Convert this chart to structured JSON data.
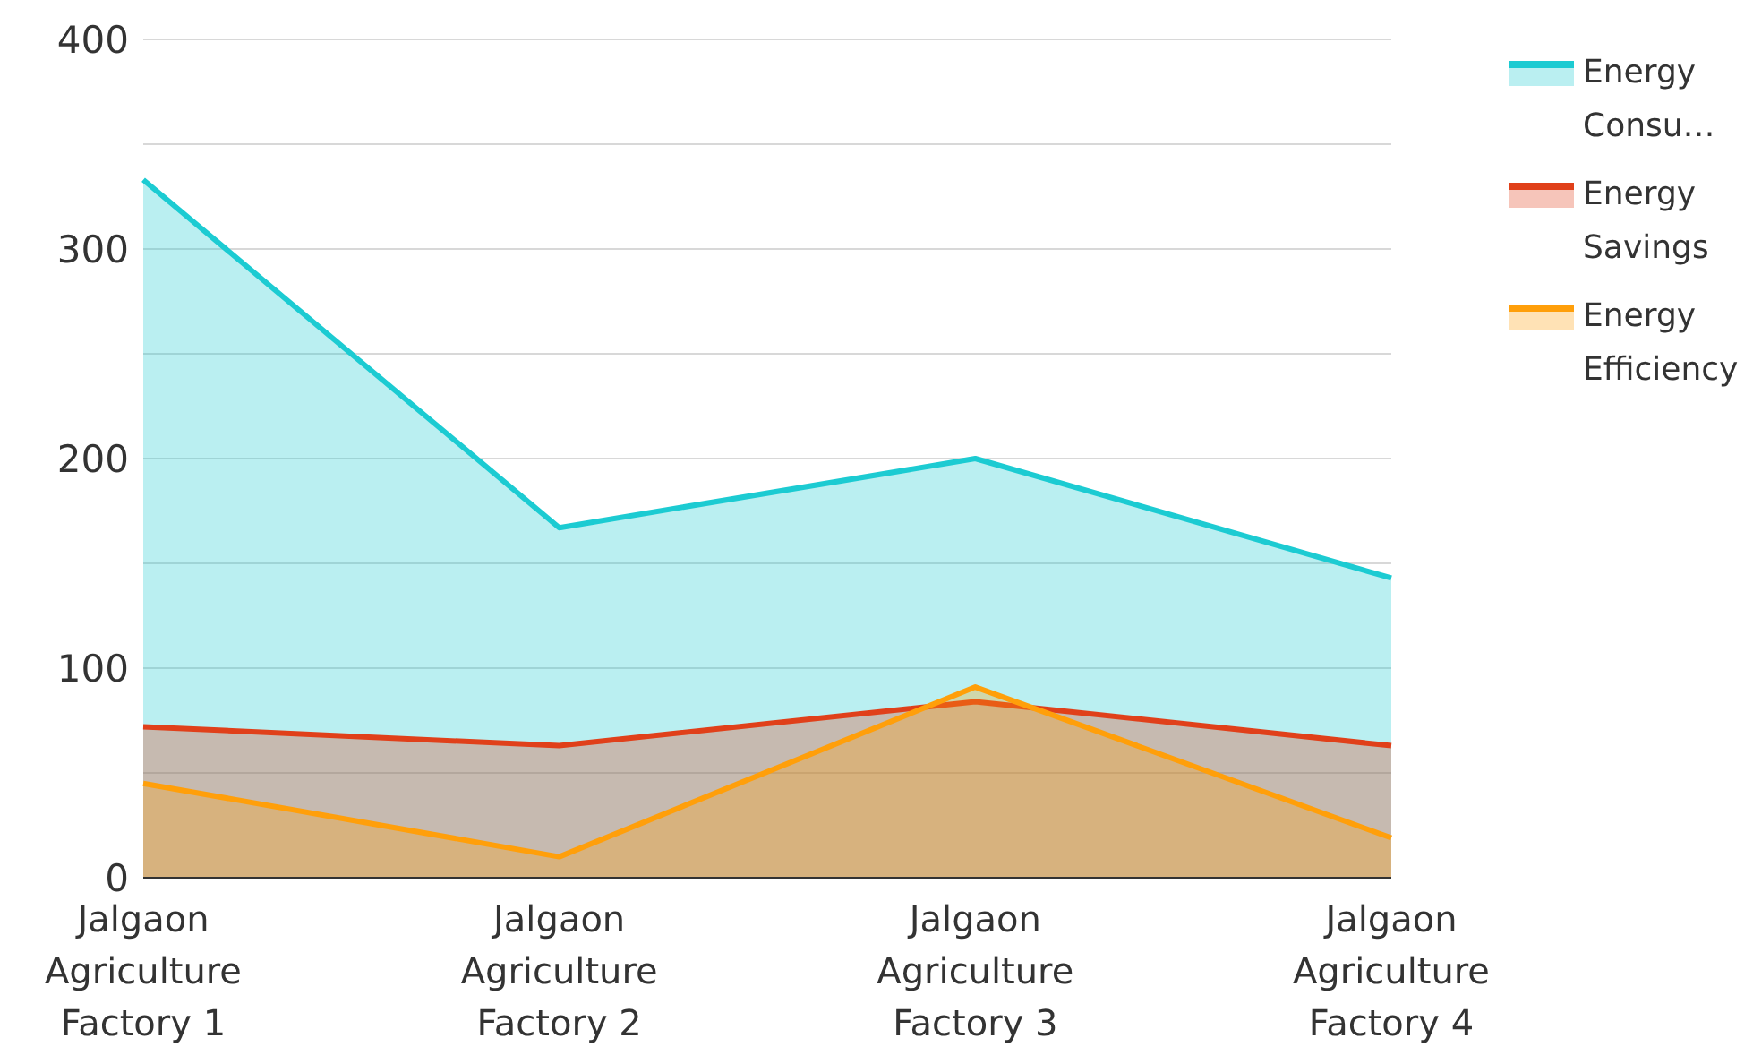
{
  "chart_data": {
    "type": "area",
    "categories": [
      "Jalgaon Agriculture Factory 1",
      "Jalgaon Agriculture Factory 2",
      "Jalgaon Agriculture Factory 3",
      "Jalgaon Agriculture Factory 4"
    ],
    "series": [
      {
        "name": "Energy Consu…",
        "color": "#1ccbd2",
        "values": [
          333,
          167,
          200,
          143
        ]
      },
      {
        "name": "Energy Savings",
        "color": "#e0401a",
        "values": [
          72,
          63,
          84,
          63
        ]
      },
      {
        "name": "Energy Efficiency",
        "color": "#ff9f0a",
        "values": [
          45,
          10,
          91,
          19
        ]
      }
    ],
    "ylim": [
      0,
      400
    ],
    "yticks": [
      0,
      {
        "value": 50,
        "label": null
      },
      100,
      {
        "value": 150,
        "label": null
      },
      200,
      {
        "value": 250,
        "label": null
      },
      300,
      {
        "value": 350,
        "label": null
      },
      400
    ],
    "grid": "y",
    "legend": "right"
  }
}
